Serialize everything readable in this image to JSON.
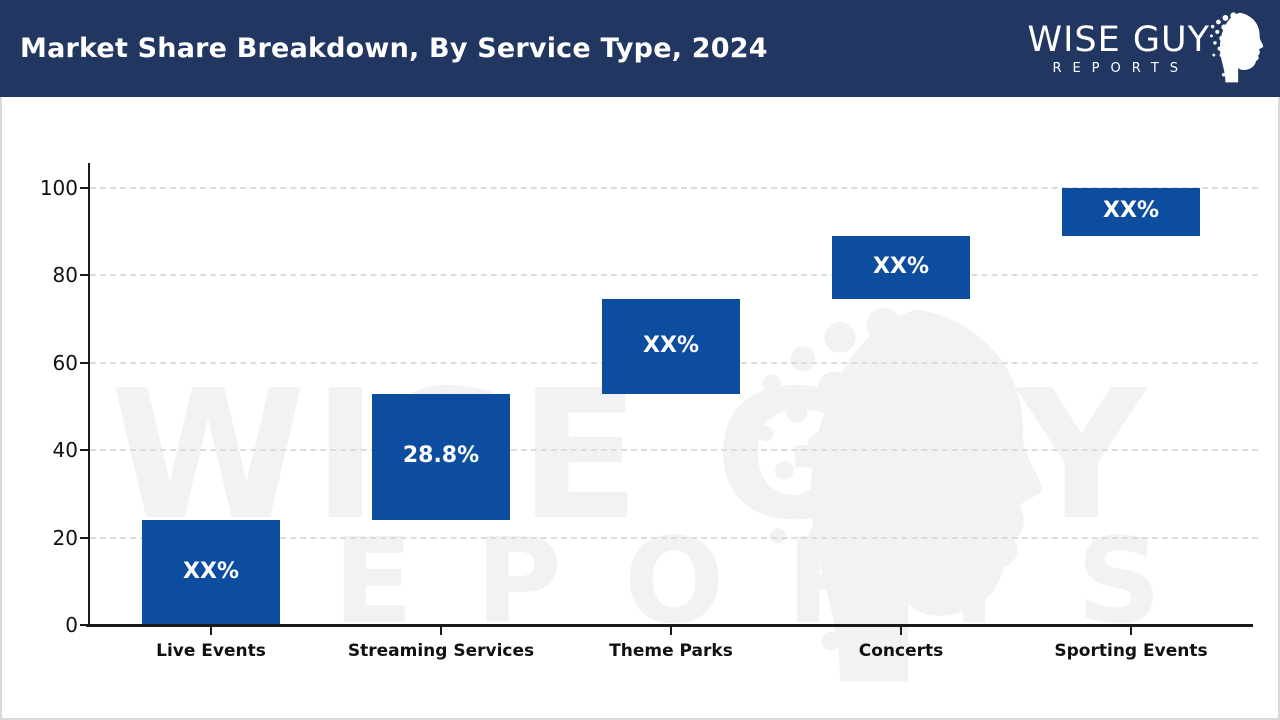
{
  "header": {
    "title": "Market Share Breakdown, By Service Type, 2024",
    "bg_color": "#213761",
    "logo": {
      "line1": "WISE GUY",
      "line2": "REPORTS",
      "icon": "wiseguy-face-icon"
    }
  },
  "watermark": {
    "line1": "WISE GUY",
    "line2": "REPORTS",
    "icon": "wiseguy-face-icon"
  },
  "chart_data": {
    "type": "bar",
    "subtype": "waterfall",
    "title": "Market Share Breakdown, By Service Type, 2024",
    "categories": [
      "Live Events",
      "Streaming Services",
      "Theme Parks",
      "Concerts",
      "Sporting Events"
    ],
    "segments": [
      {
        "category": "Live Events",
        "start": 0,
        "end": 24,
        "label": "XX%"
      },
      {
        "category": "Streaming Services",
        "start": 24,
        "end": 52.8,
        "label": "28.8%"
      },
      {
        "category": "Theme Parks",
        "start": 52.8,
        "end": 74.5,
        "label": "XX%"
      },
      {
        "category": "Concerts",
        "start": 74.5,
        "end": 88.9,
        "label": "XX%"
      },
      {
        "category": "Sporting Events",
        "start": 88.9,
        "end": 100,
        "label": "XX%"
      }
    ],
    "y_ticks": [
      0,
      20,
      40,
      60,
      80,
      100
    ],
    "ylim": [
      0,
      105
    ],
    "xlabel": "",
    "ylabel": "",
    "bar_color": "#0d4da0",
    "grid": "horizontal-dashed",
    "legend": "none"
  }
}
